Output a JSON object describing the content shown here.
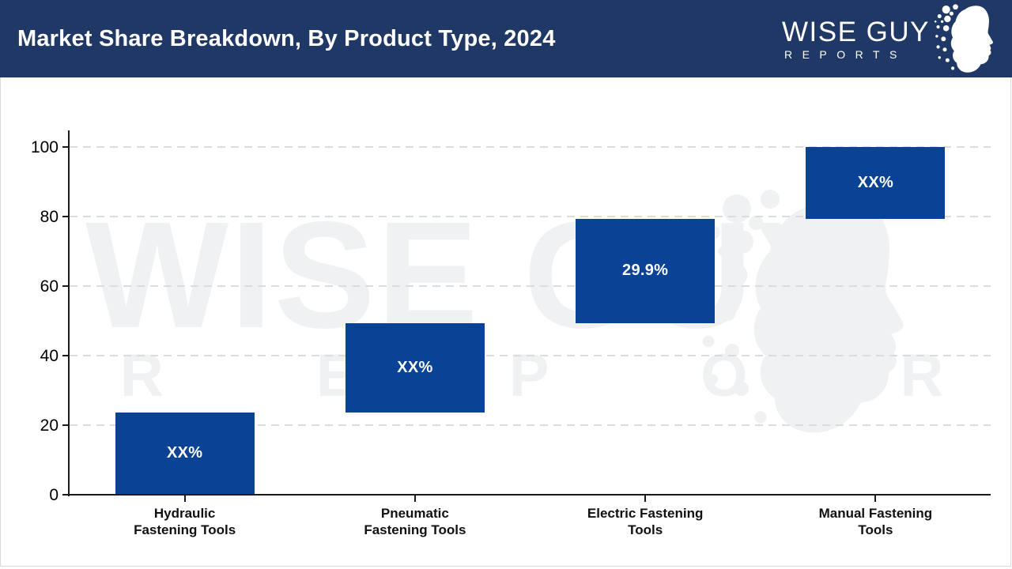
{
  "header": {
    "title": "Market Share Breakdown, By Product Type, 2024",
    "bg_color": "#1f3865",
    "logo": {
      "wordmark": "WISE GUY",
      "sub": "REPORTS",
      "face_icon": "dotted-head-profile"
    }
  },
  "watermark": {
    "line1": "WISE GUY",
    "line2": "R E P O R T S",
    "color": "#f0f1f3",
    "face_icon": "dotted-head-profile"
  },
  "chart_data": {
    "type": "bar",
    "subtype": "waterfall",
    "title": "Market Share Breakdown, By Product Type, 2024",
    "xlabel": "",
    "ylabel": "",
    "ylim": [
      0,
      105
    ],
    "yticks": [
      0,
      20,
      40,
      60,
      80,
      100
    ],
    "grid": "dashed-horizontal",
    "legend": "none",
    "bar_color": "#0a4296",
    "label_color": "#ffffff",
    "categories": [
      "Hydraulic Fastening Tools",
      "Pneumatic Fastening Tools",
      "Electric Fastening Tools",
      "Manual Fastening Tools"
    ],
    "segments": [
      {
        "category_lines": [
          "Hydraulic",
          "Fastening Tools"
        ],
        "start": 0,
        "end": 23.7,
        "value": 23.7,
        "label": "XX%"
      },
      {
        "category_lines": [
          "Pneumatic",
          "Fastening Tools"
        ],
        "start": 23.7,
        "end": 49.4,
        "value": 25.7,
        "label": "XX%"
      },
      {
        "category_lines": [
          "Electric Fastening",
          "Tools"
        ],
        "start": 49.4,
        "end": 79.3,
        "value": 29.9,
        "label": "29.9%"
      },
      {
        "category_lines": [
          "Manual Fastening",
          "Tools"
        ],
        "start": 79.3,
        "end": 100,
        "value": 20.7,
        "label": "XX%"
      }
    ]
  }
}
